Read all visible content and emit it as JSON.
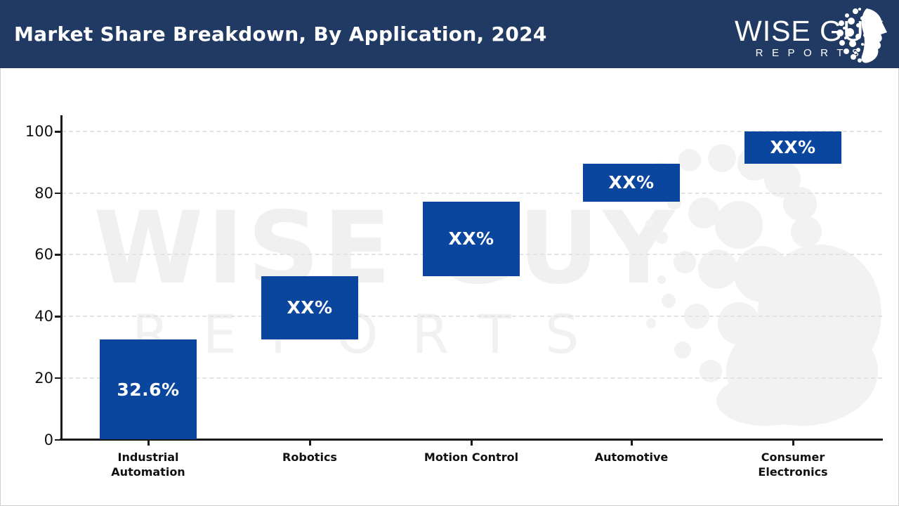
{
  "header": {
    "title": "Market Share Breakdown, By Application, 2024",
    "background_color": "#213a63",
    "logo": {
      "wordmark": "WISE GUY",
      "subtext": "REPORTS",
      "face_icon": "dotted-face-profile"
    }
  },
  "watermark": {
    "line1": "WISE GUY",
    "line2": "REPORTS",
    "face_icon": "dotted-face-profile"
  },
  "chart_data": {
    "type": "bar",
    "variant": "waterfall",
    "title": "Market Share Breakdown, By Application, 2024",
    "unit": "%",
    "categories": [
      "Industrial Automation",
      "Robotics",
      "Motion Control",
      "Automotive",
      "Consumer Electronics"
    ],
    "segments": [
      {
        "category": "Industrial Automation",
        "label_lines": [
          "Industrial",
          "Automation"
        ],
        "start": 0,
        "end": 32.6,
        "label": "32.6%"
      },
      {
        "category": "Robotics",
        "label_lines": [
          "Robotics"
        ],
        "start": 32.6,
        "end": 53.0,
        "label": "XX%"
      },
      {
        "category": "Motion Control",
        "label_lines": [
          "Motion Control"
        ],
        "start": 53.0,
        "end": 77.3,
        "label": "XX%"
      },
      {
        "category": "Automotive",
        "label_lines": [
          "Automotive"
        ],
        "start": 77.3,
        "end": 89.6,
        "label": "XX%"
      },
      {
        "category": "Consumer Electronics",
        "label_lines": [
          "Consumer",
          "Electronics"
        ],
        "start": 89.6,
        "end": 100,
        "label": "XX%"
      }
    ],
    "ylim": [
      0,
      100
    ],
    "yticks": [
      0,
      20,
      40,
      60,
      80,
      100
    ],
    "xlabel": "",
    "ylabel": "",
    "grid": "horizontal-dashed",
    "legend": "none",
    "bar_color": "#0a459e",
    "bar_label_color": "#ffffff",
    "axis_color": "#1a1a1a"
  }
}
